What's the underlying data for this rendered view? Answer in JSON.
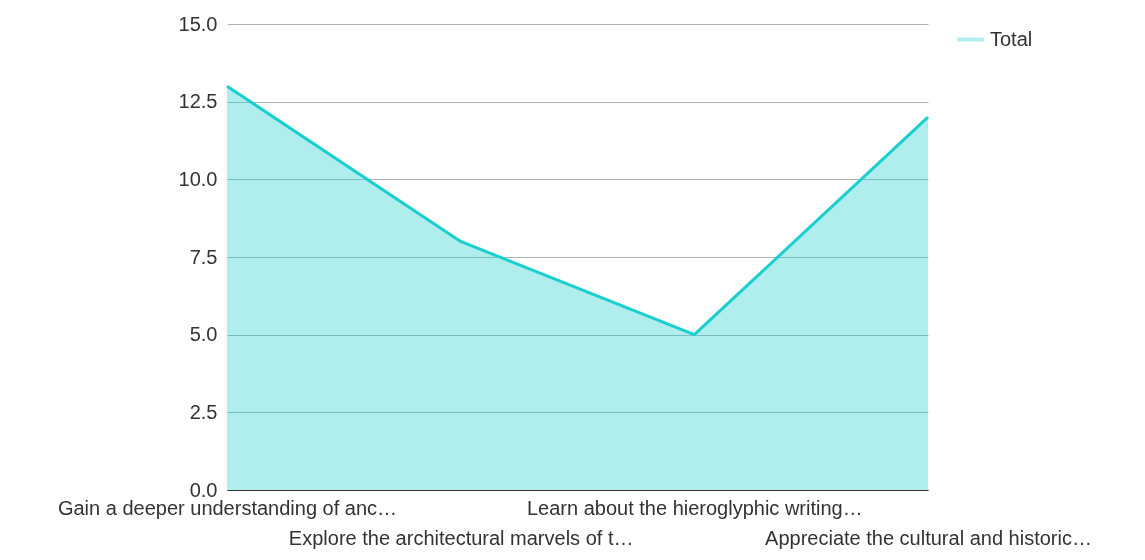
{
  "chart_data": {
    "type": "area",
    "categories": [
      "Gain a deeper understanding of anc…",
      "Explore the architectural marvels of t…",
      "Learn about the hieroglyphic writing…",
      "Appreciate the cultural and historic…"
    ],
    "series": [
      {
        "name": "Total",
        "color": "#1ccfcf",
        "values": [
          13,
          8,
          5,
          12
        ]
      }
    ],
    "ylim": [
      0,
      15
    ],
    "yticks": [
      {
        "value": 0,
        "label": "0.0"
      },
      {
        "value": 2.5,
        "label": "2.5"
      },
      {
        "value": 5,
        "label": "5.0"
      },
      {
        "value": 7.5,
        "label": "7.5"
      },
      {
        "value": 10,
        "label": "10.0"
      },
      {
        "value": 12.5,
        "label": "12.5"
      },
      {
        "value": 15,
        "label": "15.0"
      }
    ],
    "grid": "y",
    "legend": "top right"
  }
}
